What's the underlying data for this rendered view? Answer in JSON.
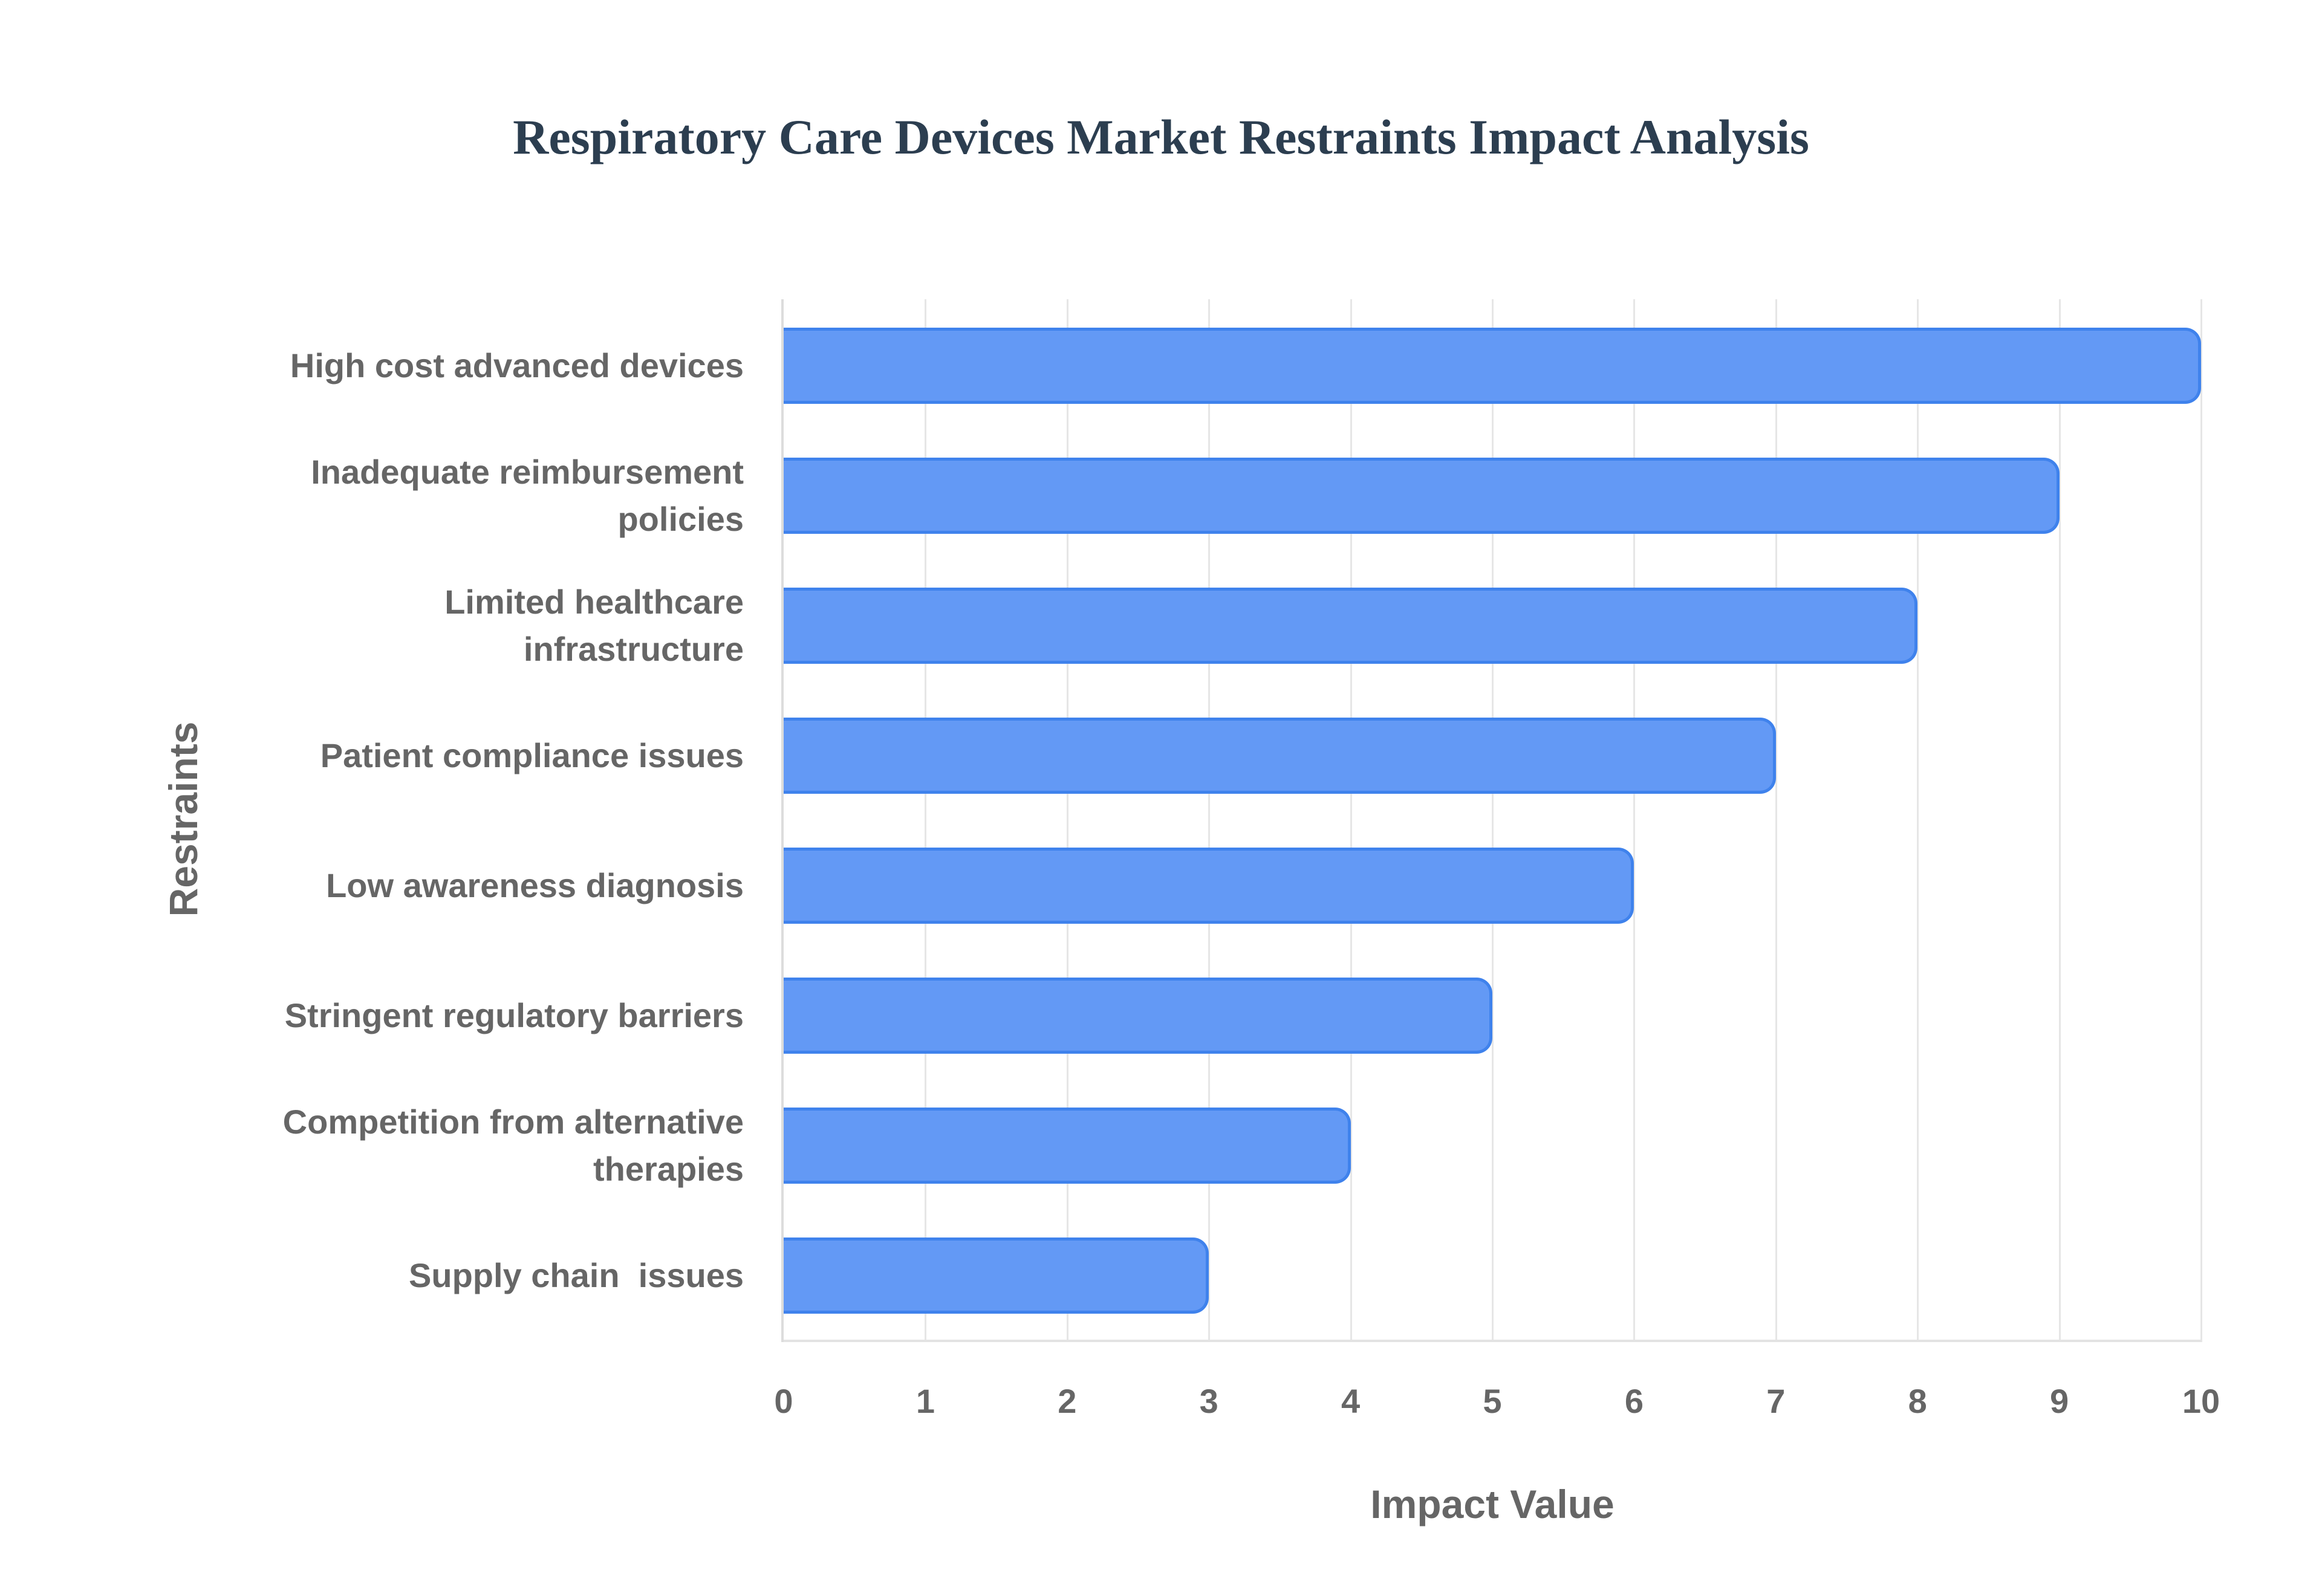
{
  "chart_data": {
    "type": "bar",
    "orientation": "horizontal",
    "title": "Respiratory Care Devices Market Restraints Impact Analysis",
    "xlabel": "Impact Value",
    "ylabel": "Restraints",
    "xlim": [
      0,
      10
    ],
    "xticks": [
      "0",
      "1",
      "2",
      "3",
      "4",
      "5",
      "6",
      "7",
      "8",
      "9",
      "10"
    ],
    "grid": true,
    "legend": "none",
    "categories": [
      "High cost advanced devices",
      "Inadequate reimbursement policies",
      "Limited healthcare infrastructure",
      "Patient compliance issues",
      "Low awareness diagnosis",
      "Stringent regulatory barriers",
      "Competition from alternative therapies",
      "Supply chain  issues"
    ],
    "category_display_lines": [
      [
        "High cost advanced devices"
      ],
      [
        "Inadequate reimbursement",
        "policies"
      ],
      [
        "Limited healthcare",
        "infrastructure"
      ],
      [
        "Patient compliance issues"
      ],
      [
        "Low awareness diagnosis"
      ],
      [
        "Stringent regulatory barriers"
      ],
      [
        "Competition from alternative",
        "therapies"
      ],
      [
        "Supply chain  issues"
      ]
    ],
    "values": [
      10,
      9,
      8,
      7,
      6,
      5,
      4,
      3
    ],
    "colors": {
      "bar_fill": "#6399f5",
      "bar_border": "#3f82ec",
      "title": "#2c3e50",
      "text": "#666666",
      "grid": "#e6e6e6"
    }
  }
}
